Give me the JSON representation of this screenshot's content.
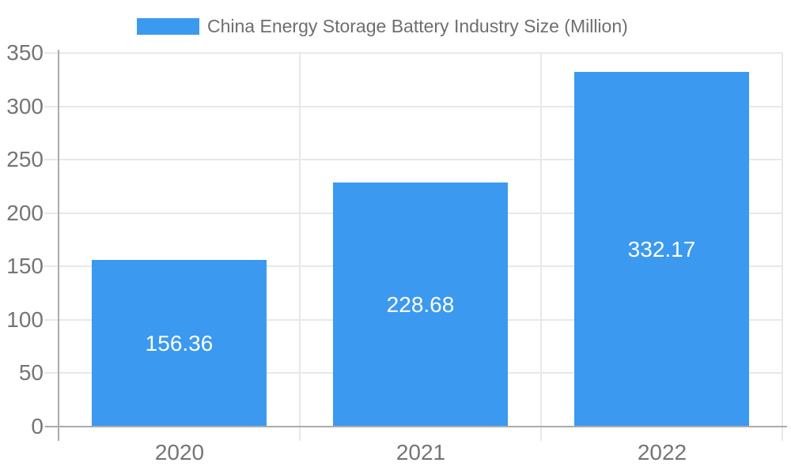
{
  "chart_data": {
    "type": "bar",
    "title": "China Energy Storage Battery Industry Size (Million)",
    "categories": [
      "2020",
      "2021",
      "2022"
    ],
    "values": [
      156.36,
      228.68,
      332.17
    ],
    "value_labels": [
      "156.36",
      "228.68",
      "332.17"
    ],
    "xlabel": "",
    "ylabel": "",
    "ylim": [
      0,
      350
    ],
    "ytick_step": 50,
    "yticks": [
      "0",
      "50",
      "100",
      "150",
      "200",
      "250",
      "300",
      "350"
    ],
    "grid": true,
    "legend_position": "top-center",
    "colors": {
      "bar": "#3b99f0",
      "bar_label": "#ffffff",
      "axis_text": "#757575",
      "legend_text": "#6e6e6e",
      "gridline": "#e8e8e8",
      "axis_line": "#ababab",
      "background": "#ffffff"
    }
  }
}
